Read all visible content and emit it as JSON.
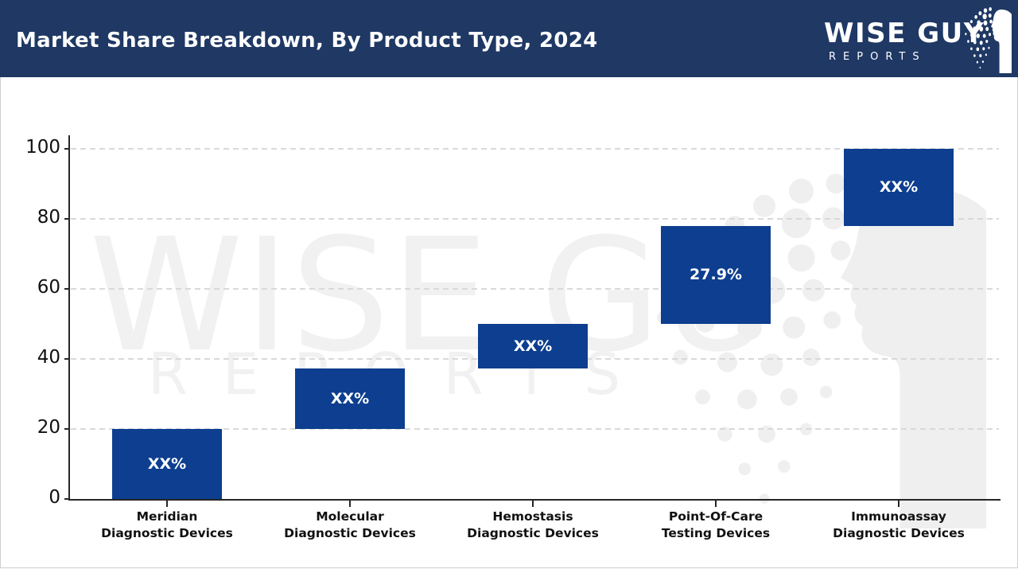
{
  "header": {
    "title": "Market Share Breakdown, By Product Type, 2024",
    "bg_color": "#1f3864",
    "logo": {
      "line1": "WISE GUY",
      "line2": "REPORTS"
    }
  },
  "watermark": {
    "line1": "WISE GU",
    "line2": "REPORTS"
  },
  "chart_data": {
    "type": "bar",
    "subtype": "waterfall",
    "title": "Market Share Breakdown, By Product Type, 2024",
    "xlabel": "",
    "ylabel": "",
    "categories": [
      [
        "Meridian",
        "Diagnostic Devices"
      ],
      [
        "Molecular",
        "Diagnostic Devices"
      ],
      [
        "Hemostasis",
        "Diagnostic Devices"
      ],
      [
        "Point-Of-Care",
        "Testing Devices"
      ],
      [
        "Immunoassay",
        "Diagnostic Devices"
      ]
    ],
    "bars": [
      {
        "start": 0,
        "end": 20,
        "height": 20,
        "label": "XX%"
      },
      {
        "start": 20,
        "end": 37.3,
        "height": 17.3,
        "label": "XX%"
      },
      {
        "start": 37.3,
        "end": 50.1,
        "height": 12.8,
        "label": "XX%"
      },
      {
        "start": 50.1,
        "end": 78,
        "height": 27.9,
        "label": "27.9%"
      },
      {
        "start": 78,
        "end": 100,
        "height": 22,
        "label": "XX%"
      }
    ],
    "yticks": [
      0,
      20,
      40,
      60,
      80,
      100
    ],
    "ylim": [
      0,
      104
    ],
    "grid": "dashed-horizontal",
    "legend": false,
    "bar_color": "#0d3e8f",
    "bar_label_color": "#ffffff",
    "axis_color": "#262626",
    "gridline_color": "#d9d9d9"
  }
}
